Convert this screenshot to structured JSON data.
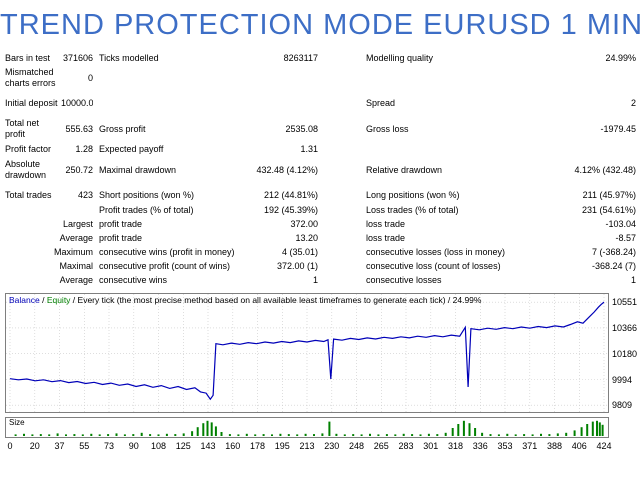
{
  "title": "TREND PROTECTION MODE EURUSD 1 MIN",
  "colors": {
    "title": "#3d6ec6",
    "balance_line": "#0000b8",
    "equity": "#008000",
    "volume_bar": "#008000",
    "grid": "#c9c9c9"
  },
  "report": {
    "rows": [
      {
        "l1": "Bars in test",
        "v1": "371606",
        "l2": "Ticks modelled",
        "v2": "8263117",
        "l3": "Modelling quality",
        "v3": "24.99%"
      },
      {
        "l1": "Mismatched charts errors",
        "v1": "0",
        "l2": "",
        "v2": "",
        "l3": "",
        "v3": ""
      },
      {
        "l1": "Initial deposit",
        "v1": "10000.00",
        "l2": "",
        "v2": "",
        "l3": "Spread",
        "v3": "2"
      },
      {
        "l1": "Total net profit",
        "v1": "555.63",
        "l2": "Gross profit",
        "v2": "2535.08",
        "l3": "Gross loss",
        "v3": "-1979.45"
      },
      {
        "l1": "Profit factor",
        "v1": "1.28",
        "l2": "Expected payoff",
        "v2": "1.31",
        "l3": "",
        "v3": ""
      },
      {
        "l1": "Absolute drawdown",
        "v1": "250.72",
        "l2": "Maximal drawdown",
        "v2": "432.48 (4.12%)",
        "l3": "Relative drawdown",
        "v3": "4.12% (432.48)"
      },
      {
        "l1": "Total trades",
        "v1": "423",
        "l2": "Short positions (won %)",
        "v2": "212 (44.81%)",
        "l3": "Long positions (won %)",
        "v3": "211 (45.97%)"
      },
      {
        "l1": "",
        "v1": "",
        "l2": "Profit trades (% of total)",
        "v2": "192 (45.39%)",
        "l3": "Loss trades (% of total)",
        "v3": "231 (54.61%)"
      },
      {
        "r1": "Largest",
        "l2": "profit trade",
        "v2": "372.00",
        "l3": "loss trade",
        "v3": "-103.04"
      },
      {
        "r1": "Average",
        "l2": "profit trade",
        "v2": "13.20",
        "l3": "loss trade",
        "v3": "-8.57"
      },
      {
        "r1": "Maximum",
        "l2": "consecutive wins (profit in money)",
        "v2": "4 (35.01)",
        "l3": "consecutive losses (loss in money)",
        "v3": "7 (-368.24)"
      },
      {
        "r1": "Maximal",
        "l2": "consecutive profit (count of wins)",
        "v2": "372.00 (1)",
        "l3": "consecutive loss (count of losses)",
        "v3": "-368.24 (7)"
      },
      {
        "r1": "Average",
        "l2": "consecutive wins",
        "v2": "1",
        "l3": "consecutive losses",
        "v3": "1"
      }
    ]
  },
  "chart_data": {
    "type": "line",
    "legend": {
      "balance": "Balance",
      "sep1": " / ",
      "equity": "Equity",
      "method": " / Every tick (the most precise method based on all available least timeframes to generate each tick) / 24.99%"
    },
    "y_ticks": [
      10551,
      10366,
      10180,
      9994,
      9809
    ],
    "x_ticks": [
      0,
      20,
      37,
      55,
      73,
      90,
      108,
      125,
      143,
      160,
      178,
      195,
      213,
      230,
      248,
      265,
      283,
      301,
      318,
      336,
      353,
      371,
      388,
      406,
      424
    ],
    "xlim": [
      0,
      424
    ],
    "ylim": [
      9760,
      10610
    ],
    "series": [
      {
        "name": "Balance",
        "points": [
          [
            0,
            10000
          ],
          [
            6,
            9992
          ],
          [
            12,
            9998
          ],
          [
            18,
            9985
          ],
          [
            24,
            9992
          ],
          [
            30,
            9978
          ],
          [
            36,
            9986
          ],
          [
            42,
            9972
          ],
          [
            48,
            9980
          ],
          [
            54,
            9965
          ],
          [
            60,
            9974
          ],
          [
            66,
            9958
          ],
          [
            72,
            9968
          ],
          [
            78,
            9952
          ],
          [
            84,
            9962
          ],
          [
            90,
            9944
          ],
          [
            96,
            9956
          ],
          [
            102,
            9938
          ],
          [
            108,
            9950
          ],
          [
            114,
            9930
          ],
          [
            120,
            9944
          ],
          [
            126,
            9922
          ],
          [
            132,
            9934
          ],
          [
            136,
            9905
          ],
          [
            140,
            9896
          ],
          [
            143,
            9852
          ],
          [
            145,
            9880
          ],
          [
            147,
            10252
          ],
          [
            152,
            10244
          ],
          [
            158,
            10256
          ],
          [
            164,
            10248
          ],
          [
            170,
            10260
          ],
          [
            176,
            10252
          ],
          [
            182,
            10264
          ],
          [
            188,
            10256
          ],
          [
            194,
            10268
          ],
          [
            200,
            10260
          ],
          [
            206,
            10272
          ],
          [
            212,
            10264
          ],
          [
            218,
            10276
          ],
          [
            224,
            10268
          ],
          [
            227,
            10280
          ],
          [
            229,
            9998
          ],
          [
            231,
            10285
          ],
          [
            237,
            10277
          ],
          [
            243,
            10290
          ],
          [
            249,
            10282
          ],
          [
            255,
            10294
          ],
          [
            261,
            10286
          ],
          [
            267,
            10298
          ],
          [
            273,
            10290
          ],
          [
            279,
            10302
          ],
          [
            285,
            10294
          ],
          [
            291,
            10306
          ],
          [
            297,
            10298
          ],
          [
            303,
            10310
          ],
          [
            309,
            10302
          ],
          [
            315,
            10314
          ],
          [
            321,
            10306
          ],
          [
            325,
            10370
          ],
          [
            327,
            9940
          ],
          [
            329,
            10360
          ],
          [
            335,
            10352
          ],
          [
            341,
            10364
          ],
          [
            347,
            10356
          ],
          [
            353,
            10368
          ],
          [
            359,
            10360
          ],
          [
            365,
            10372
          ],
          [
            371,
            10364
          ],
          [
            377,
            10376
          ],
          [
            383,
            10368
          ],
          [
            389,
            10380
          ],
          [
            395,
            10372
          ],
          [
            400,
            10390
          ],
          [
            405,
            10410
          ],
          [
            409,
            10400
          ],
          [
            413,
            10440
          ],
          [
            417,
            10480
          ],
          [
            420,
            10515
          ],
          [
            422,
            10535
          ],
          [
            424,
            10552
          ]
        ]
      }
    ],
    "volume": {
      "label": "Size",
      "bars": [
        [
          4,
          0.1
        ],
        [
          10,
          0.14
        ],
        [
          16,
          0.1
        ],
        [
          22,
          0.12
        ],
        [
          28,
          0.1
        ],
        [
          34,
          0.16
        ],
        [
          40,
          0.1
        ],
        [
          46,
          0.12
        ],
        [
          52,
          0.1
        ],
        [
          58,
          0.14
        ],
        [
          64,
          0.1
        ],
        [
          70,
          0.12
        ],
        [
          76,
          0.16
        ],
        [
          82,
          0.1
        ],
        [
          88,
          0.12
        ],
        [
          94,
          0.2
        ],
        [
          100,
          0.12
        ],
        [
          106,
          0.1
        ],
        [
          112,
          0.14
        ],
        [
          118,
          0.12
        ],
        [
          124,
          0.16
        ],
        [
          130,
          0.3
        ],
        [
          134,
          0.55
        ],
        [
          138,
          0.8
        ],
        [
          141,
          0.95
        ],
        [
          144,
          0.85
        ],
        [
          147,
          0.6
        ],
        [
          151,
          0.25
        ],
        [
          157,
          0.12
        ],
        [
          163,
          0.1
        ],
        [
          169,
          0.14
        ],
        [
          175,
          0.1
        ],
        [
          181,
          0.12
        ],
        [
          187,
          0.1
        ],
        [
          193,
          0.14
        ],
        [
          199,
          0.12
        ],
        [
          205,
          0.1
        ],
        [
          211,
          0.14
        ],
        [
          217,
          0.12
        ],
        [
          223,
          0.16
        ],
        [
          228,
          0.9
        ],
        [
          233,
          0.14
        ],
        [
          239,
          0.1
        ],
        [
          245,
          0.12
        ],
        [
          251,
          0.1
        ],
        [
          257,
          0.14
        ],
        [
          263,
          0.1
        ],
        [
          269,
          0.12
        ],
        [
          275,
          0.1
        ],
        [
          281,
          0.14
        ],
        [
          287,
          0.12
        ],
        [
          293,
          0.1
        ],
        [
          299,
          0.14
        ],
        [
          305,
          0.12
        ],
        [
          311,
          0.2
        ],
        [
          316,
          0.5
        ],
        [
          320,
          0.75
        ],
        [
          324,
          0.95
        ],
        [
          328,
          0.8
        ],
        [
          332,
          0.5
        ],
        [
          337,
          0.2
        ],
        [
          343,
          0.12
        ],
        [
          349,
          0.1
        ],
        [
          355,
          0.14
        ],
        [
          361,
          0.1
        ],
        [
          367,
          0.12
        ],
        [
          373,
          0.1
        ],
        [
          379,
          0.14
        ],
        [
          385,
          0.12
        ],
        [
          391,
          0.16
        ],
        [
          397,
          0.2
        ],
        [
          403,
          0.35
        ],
        [
          408,
          0.55
        ],
        [
          412,
          0.75
        ],
        [
          416,
          0.9
        ],
        [
          419,
          0.95
        ],
        [
          421,
          0.85
        ],
        [
          423,
          0.7
        ]
      ]
    }
  }
}
